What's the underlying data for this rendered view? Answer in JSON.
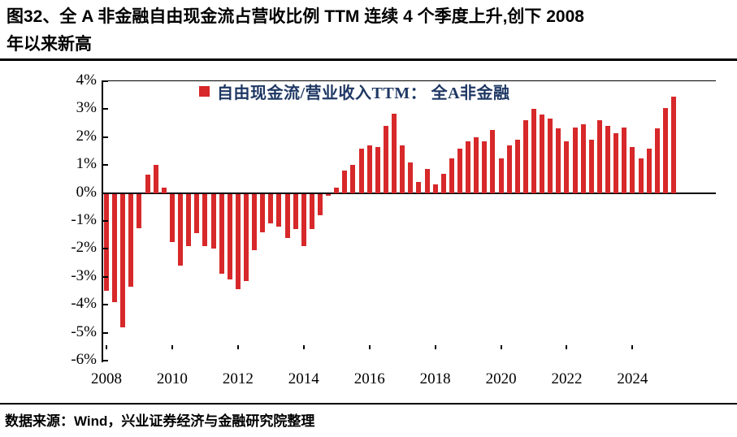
{
  "title": {
    "line1": "图32、全 A 非金融自由现金流占营收比例 TTM 连续 4 个季度上升,创下 2008",
    "line2": "年以来新高"
  },
  "footer": {
    "text": "数据来源：Wind，兴业证券经济与金融研究院整理"
  },
  "colors": {
    "bar": "#d7282a",
    "legend_text": "#1f3864",
    "axis": "#000000"
  },
  "chart_data": {
    "type": "bar",
    "title": "全A非金融自由现金流占营收比例TTM",
    "series_name": "自由现金流/营业收入TTM： 全A非金融",
    "legend_position": "top-center-inside",
    "grid": false,
    "ylim": [
      -6,
      4
    ],
    "ytick_step": 1,
    "ytick_suffix": "%",
    "ytick_labels": [
      "4%",
      "3%",
      "2%",
      "1%",
      "0%",
      "-1%",
      "-2%",
      "-3%",
      "-4%",
      "-5%",
      "-6%"
    ],
    "xtick_labels": [
      "2008",
      "2010",
      "2012",
      "2014",
      "2016",
      "2018",
      "2020",
      "2022",
      "2024"
    ],
    "xtick_every_n_bars": 8,
    "x_start": "2008Q1",
    "x_end": "2025Q2",
    "quarters": [
      "2008Q1",
      "2008Q2",
      "2008Q3",
      "2008Q4",
      "2009Q1",
      "2009Q2",
      "2009Q3",
      "2009Q4",
      "2010Q1",
      "2010Q2",
      "2010Q3",
      "2010Q4",
      "2011Q1",
      "2011Q2",
      "2011Q3",
      "2011Q4",
      "2012Q1",
      "2012Q2",
      "2012Q3",
      "2012Q4",
      "2013Q1",
      "2013Q2",
      "2013Q3",
      "2013Q4",
      "2014Q1",
      "2014Q2",
      "2014Q3",
      "2014Q4",
      "2015Q1",
      "2015Q2",
      "2015Q3",
      "2015Q4",
      "2016Q1",
      "2016Q2",
      "2016Q3",
      "2016Q4",
      "2017Q1",
      "2017Q2",
      "2017Q3",
      "2017Q4",
      "2018Q1",
      "2018Q2",
      "2018Q3",
      "2018Q4",
      "2019Q1",
      "2019Q2",
      "2019Q3",
      "2019Q4",
      "2020Q1",
      "2020Q2",
      "2020Q3",
      "2020Q4",
      "2021Q1",
      "2021Q2",
      "2021Q3",
      "2021Q4",
      "2022Q1",
      "2022Q2",
      "2022Q3",
      "2022Q4",
      "2023Q1",
      "2023Q2",
      "2023Q3",
      "2023Q4",
      "2024Q1",
      "2024Q2",
      "2024Q3",
      "2024Q4",
      "2025Q1",
      "2025Q2"
    ],
    "values": [
      -3.5,
      -3.9,
      -4.8,
      -3.35,
      -1.25,
      0.65,
      1.0,
      0.2,
      -1.75,
      -2.6,
      -1.9,
      -1.45,
      -1.9,
      -2.0,
      -2.9,
      -3.1,
      -3.45,
      -3.15,
      -2.05,
      -1.4,
      -1.1,
      -1.2,
      -1.6,
      -1.3,
      -1.9,
      -1.3,
      -0.8,
      -0.1,
      0.2,
      0.8,
      1.0,
      1.6,
      1.7,
      1.65,
      2.4,
      2.85,
      1.7,
      1.1,
      0.4,
      0.85,
      0.3,
      0.7,
      1.25,
      1.6,
      1.85,
      2.0,
      1.85,
      2.25,
      1.25,
      1.7,
      1.9,
      2.6,
      3.0,
      2.8,
      2.65,
      2.3,
      1.85,
      2.35,
      2.45,
      1.9,
      2.6,
      2.4,
      2.15,
      2.35,
      1.65,
      1.25,
      1.6,
      2.3,
      3.05,
      3.45
    ]
  }
}
